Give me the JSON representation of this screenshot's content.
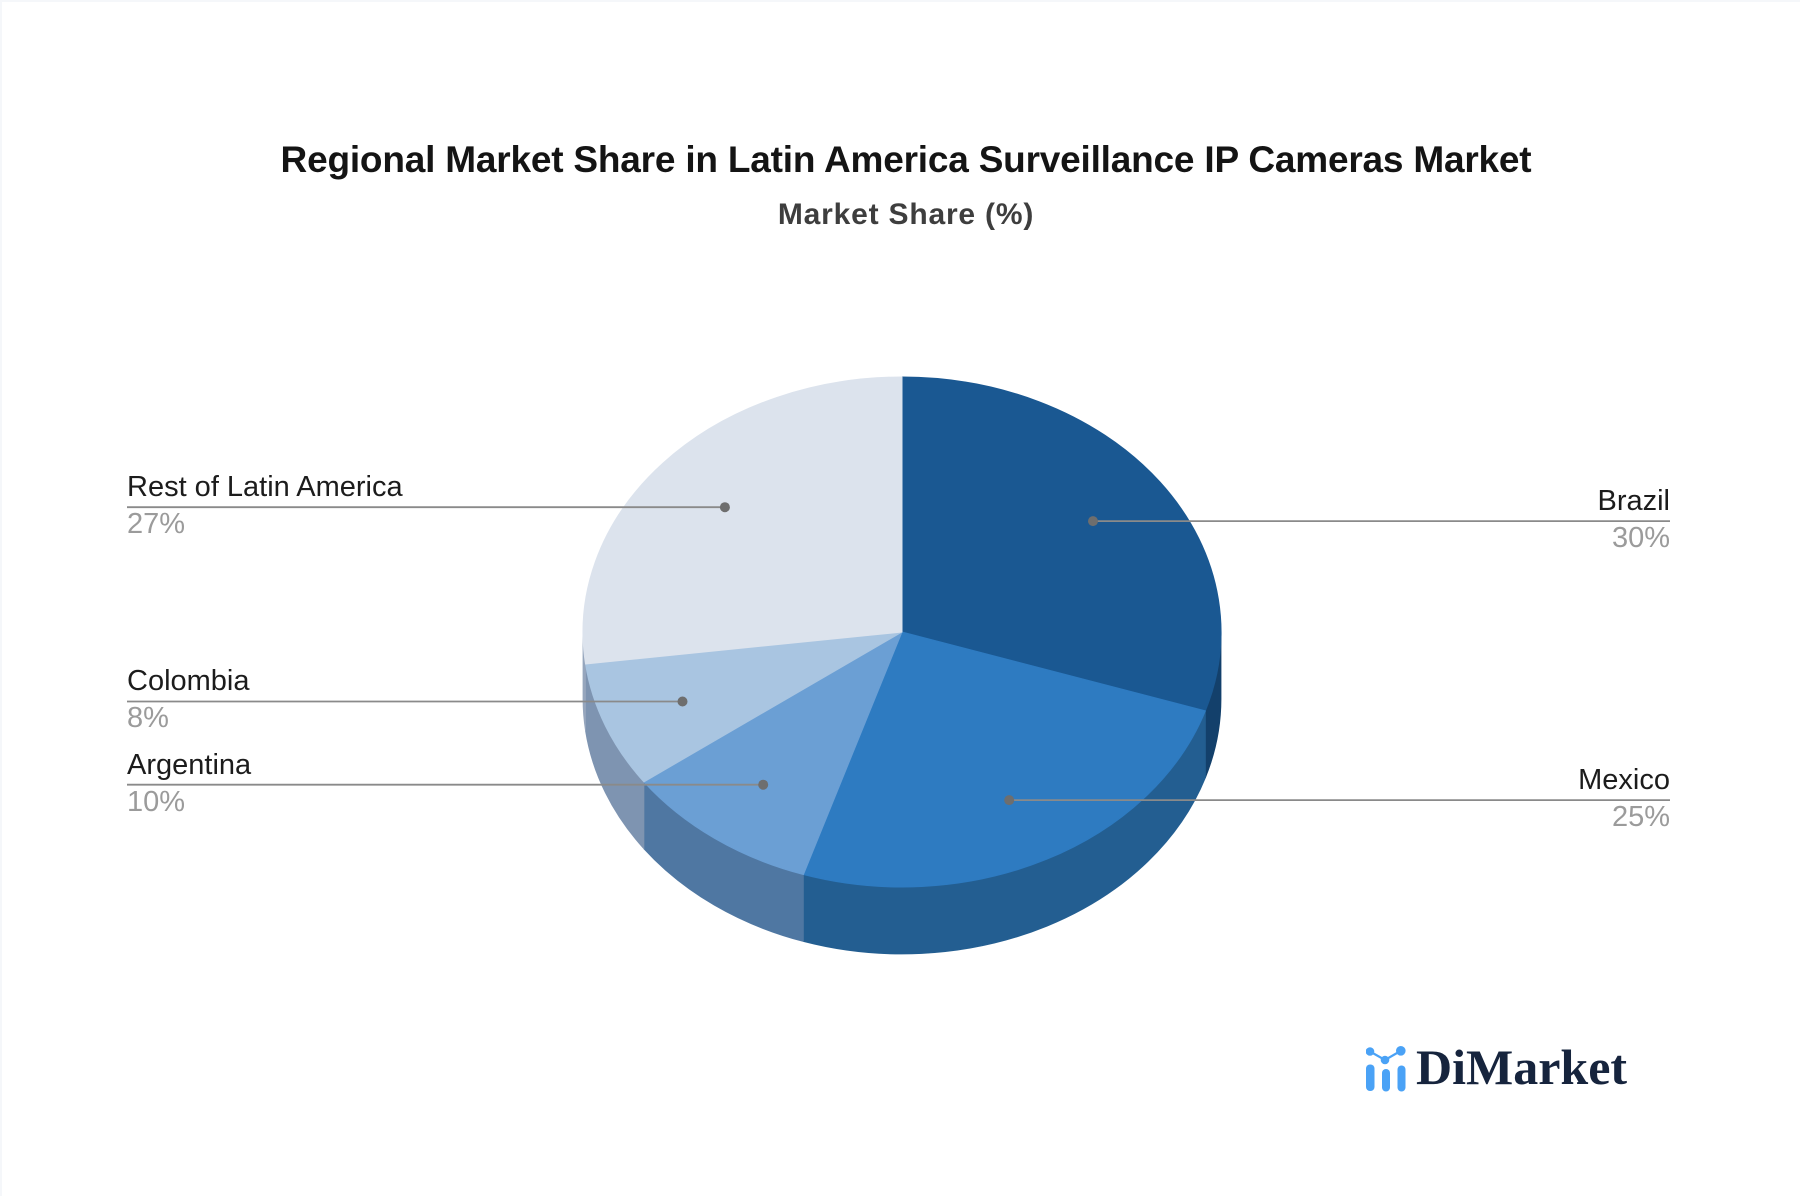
{
  "title": "Regional Market Share in Latin America Surveillance IP Cameras Market",
  "subtitle": "Market Share (%)",
  "chart_data": {
    "type": "pie",
    "title": "Regional Market Share in Latin America Surveillance IP Cameras Market",
    "subtitle": "Market Share (%)",
    "unit": "%",
    "categories": [
      "Brazil",
      "Mexico",
      "Argentina",
      "Colombia",
      "Rest of Latin America"
    ],
    "values": [
      30,
      25,
      10,
      8,
      27
    ],
    "value_labels": [
      "30%",
      "25%",
      "10%",
      "8%",
      "27%"
    ],
    "colors": [
      "#1a5892",
      "#2e7bc1",
      "#6b9fd4",
      "#a9c5e1",
      "#dce3ed"
    ],
    "side_colors": [
      "#13406b",
      "#235e91",
      "#4f77a2",
      "#7e94b1",
      "#96a6bd"
    ],
    "label_sides": [
      "right",
      "right",
      "left",
      "left",
      "left"
    ],
    "start_angle_deg": 0,
    "clockwise": true,
    "effect": "3d",
    "legend_position": "callouts"
  },
  "theme": {
    "background": "#ffffff",
    "title_color": "#141414",
    "subtitle_color": "#3e3e3e",
    "callout_line": "#8a8a8a",
    "callout_dot": "#6e6e6e",
    "label_color": "#1c1c1c",
    "pct_color": "#9b9b9b"
  },
  "logo": {
    "text": "DiMarket",
    "icon": "bar-line-chart-icon",
    "icon_color": "#4aa2f6",
    "text_color": "#16243d"
  }
}
